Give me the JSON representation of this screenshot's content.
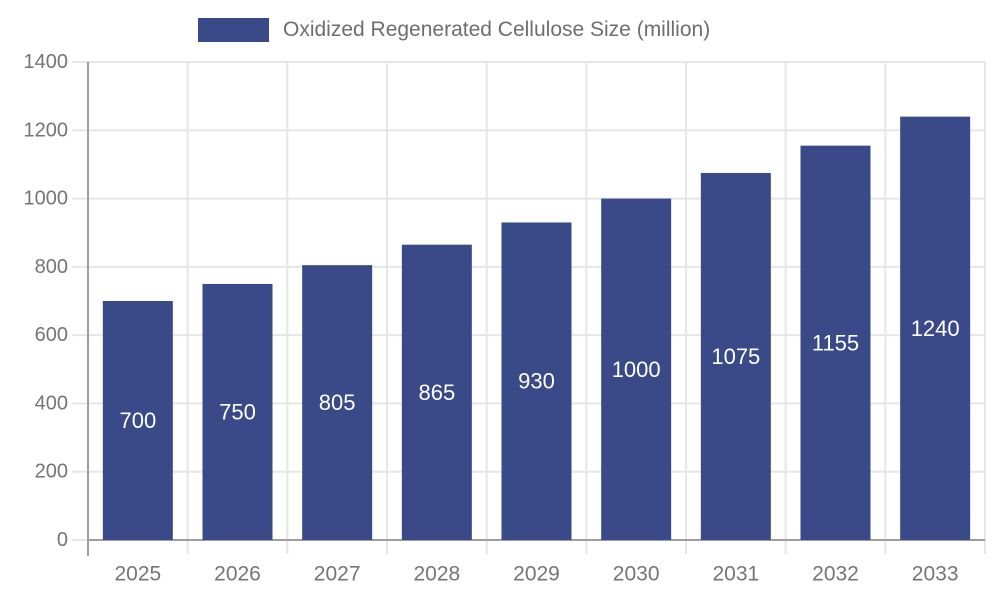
{
  "legend": {
    "label": "Oxidized Regenerated Cellulose Size (million)"
  },
  "colors": {
    "bar": "#3A4A88",
    "value_label": "#FFFFFF",
    "axis_line": "#9E9E9E",
    "grid_line": "#E6E6E6",
    "tick_label": "#757575",
    "legend_text": "#6E6E6E",
    "background": "#FFFFFF"
  },
  "chart_data": {
    "type": "bar",
    "title": "Oxidized Regenerated Cellulose Size (million)",
    "categories": [
      "2025",
      "2026",
      "2027",
      "2028",
      "2029",
      "2030",
      "2031",
      "2032",
      "2033"
    ],
    "values": [
      700,
      750,
      805,
      865,
      930,
      1000,
      1075,
      1155,
      1240
    ],
    "xlabel": "",
    "ylabel": "",
    "ylim": [
      0,
      1400
    ],
    "ytick_step": 200,
    "grid": true,
    "legend_position": "top",
    "value_label_position": "inside-center"
  }
}
